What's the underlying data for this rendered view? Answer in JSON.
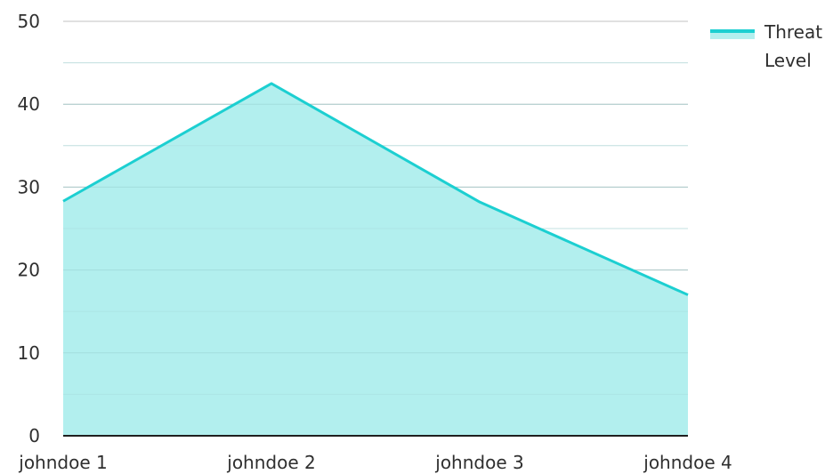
{
  "chart_data": {
    "type": "area",
    "title": "",
    "xlabel": "",
    "ylabel": "",
    "categories": [
      "johndoe 1",
      "johndoe 2",
      "johndoe 3",
      "johndoe 4"
    ],
    "series": [
      {
        "name": "Threat Level",
        "values": [
          28.3,
          42.5,
          28.2,
          17
        ],
        "line_color": "#1ccfd1",
        "fill_color": "#b2efee"
      }
    ],
    "ylim": [
      0,
      50
    ],
    "yticks": [
      "0",
      "10",
      "20",
      "30",
      "40",
      "50"
    ],
    "grid": true,
    "legend": {
      "position": "top-right",
      "label_lines": [
        "Threat",
        "Level"
      ]
    }
  }
}
